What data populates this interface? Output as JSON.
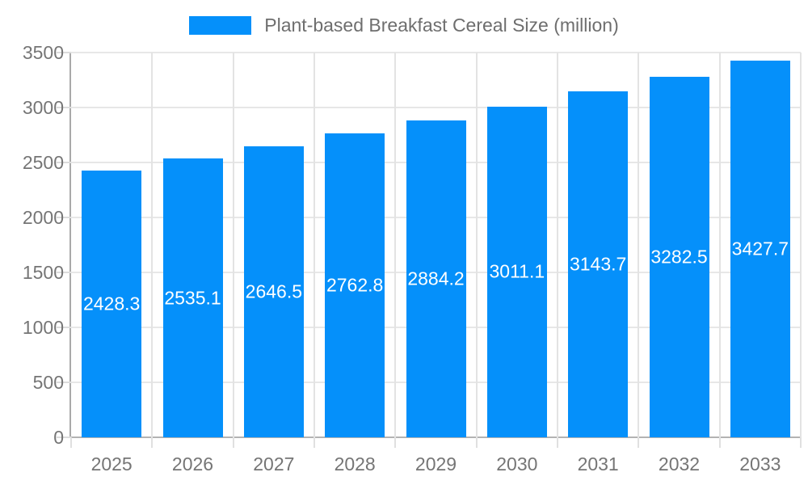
{
  "chart_data": {
    "type": "bar",
    "title": "Plant-based Breakfast Cereal Size (million)",
    "categories": [
      "2025",
      "2026",
      "2027",
      "2028",
      "2029",
      "2030",
      "2031",
      "2032",
      "2033"
    ],
    "series": [
      {
        "name": "Plant-based Breakfast Cereal Size (million)",
        "color": "#0590fa",
        "values": [
          2428.3,
          2535.1,
          2646.5,
          2762.8,
          2884.2,
          3011.1,
          3143.7,
          3282.5,
          3427.7
        ]
      }
    ],
    "xlabel": "",
    "ylabel": "",
    "ylim": [
      0,
      3500
    ],
    "ytick_interval": 500,
    "ytick_labels": [
      "0",
      "500",
      "1000",
      "1500",
      "2000",
      "2500",
      "3000",
      "3500"
    ],
    "grid": true,
    "legend_position": "top-center",
    "value_labels": {
      "position": "inside-center",
      "color": "#ffffff"
    },
    "colors": {
      "bar": "#0590fa",
      "background": "#ffffff",
      "grid_line": "#e7e7e7",
      "axis_line": "#b3b3b3",
      "tick_label": "#757575",
      "title_text": "#6e6e6e"
    }
  }
}
